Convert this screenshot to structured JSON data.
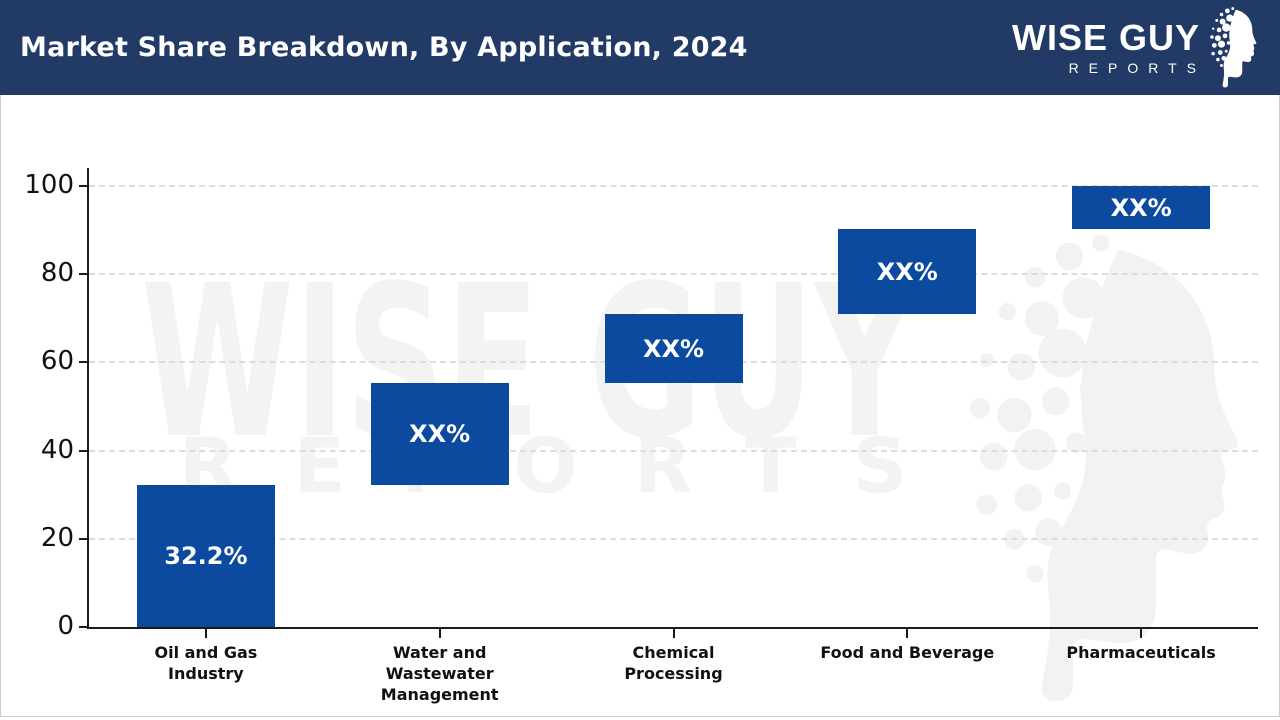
{
  "header": {
    "title": "Market Share Breakdown, By Application, 2024",
    "background_color": "#213a66",
    "logo": {
      "brand": "WISE GUY",
      "sub": "REPORTS"
    }
  },
  "watermark": {
    "line1": "WISE GUY",
    "line2": "REPORTS"
  },
  "chart_data": {
    "type": "bar",
    "subtype": "waterfall",
    "title": "Market Share Breakdown, By Application, 2024",
    "categories": [
      "Oil and Gas\nIndustry",
      "Water and\nWastewater\nManagement",
      "Chemical\nProcessing",
      "Food and Beverage",
      "Pharmaceuticals"
    ],
    "values": [
      32.2,
      23.2,
      15.5,
      19.3,
      9.8
    ],
    "starts": [
      0,
      32.2,
      55.4,
      70.9,
      90.2
    ],
    "ends": [
      32.2,
      55.4,
      70.9,
      90.2,
      100
    ],
    "bar_labels": [
      "32.2%",
      "XX%",
      "XX%",
      "XX%",
      "XX%"
    ],
    "xlabel": "",
    "ylabel": "",
    "ylim": [
      0,
      100
    ],
    "yticks": [
      0,
      20,
      40,
      60,
      80,
      100
    ],
    "grid": "horizontal-dashed",
    "legend": "none",
    "bar_color": "#0b4a9f",
    "grid_color": "#dcdcdc",
    "axis_color": "#1a1a1a"
  }
}
